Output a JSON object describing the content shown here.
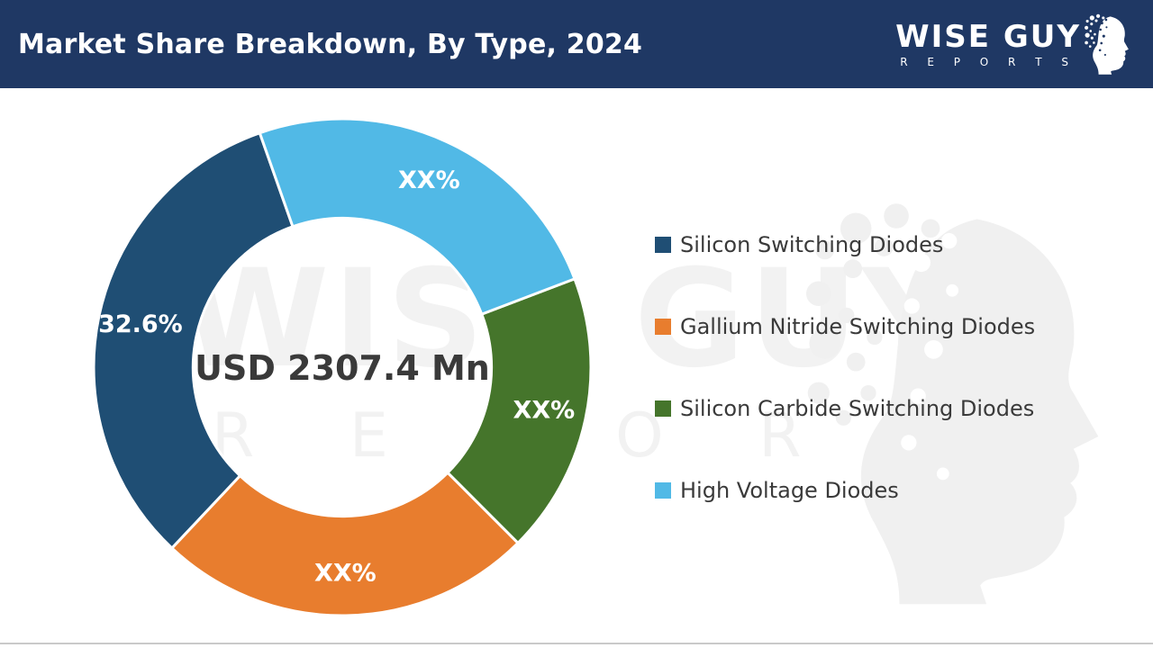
{
  "header": {
    "title": "Market Share Breakdown, By Type, 2024",
    "logo_primary": "WISE GUY",
    "logo_secondary": "R E P O R T S"
  },
  "watermark": {
    "primary": "WISE GUY",
    "secondary": "R E P O R T S"
  },
  "chart_data": {
    "type": "pie",
    "subtype": "donut",
    "title": "Market Share Breakdown, By Type, 2024",
    "center_label": "USD 2307.4 Mn",
    "units": "percent market share",
    "start_angle_deg": 109.4,
    "direction": "counterclockwise",
    "inner_radius_ratio": 0.6,
    "legend_position": "right",
    "segments": [
      {
        "label": "Silicon Switching Diodes",
        "value_pct": 32.6,
        "display": "32.6%",
        "color": "#1f4e74"
      },
      {
        "label": "Gallium Nitride Switching Diodes",
        "value_pct": 24.5,
        "display": "XX%",
        "color": "#e87d2e"
      },
      {
        "label": "Silicon Carbide Switching Diodes",
        "value_pct": 18.3,
        "display": "XX%",
        "color": "#45752b"
      },
      {
        "label": "High Voltage Diodes",
        "value_pct": 24.6,
        "display": "XX%",
        "color": "#51b9e6"
      }
    ]
  },
  "colors": {
    "header_bg": "#1f3864",
    "slice_label": "#ffffff",
    "center_text": "#3a3a3a",
    "legend_text": "#3a3a3a",
    "watermark": "#f2f2f2"
  }
}
